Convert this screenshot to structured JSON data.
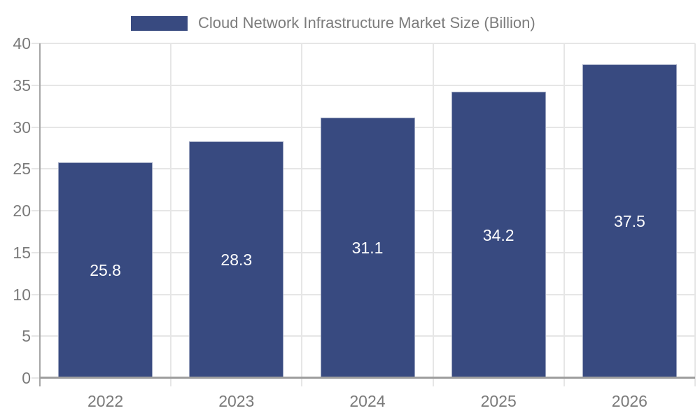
{
  "chart_data": {
    "type": "bar",
    "legend_label": "Cloud Network Infrastructure Market Size (Billion)",
    "legend_position": "top",
    "categories": [
      "2022",
      "2023",
      "2024",
      "2025",
      "2026"
    ],
    "values": [
      25.8,
      28.3,
      31.1,
      34.2,
      37.5
    ],
    "value_labels": [
      "25.8",
      "28.3",
      "31.1",
      "34.2",
      "37.5"
    ],
    "xlabel": "",
    "ylabel": "",
    "ylim": [
      0,
      40
    ],
    "yticks": [
      0,
      5,
      10,
      15,
      20,
      25,
      30,
      35,
      40
    ],
    "grid": true,
    "colors": {
      "bar": "#384a80",
      "value_text": "#ffffff",
      "axis_text": "#7a7a7a",
      "legend_text": "#7c7c7c",
      "grid_line": "#e6e6e6",
      "axis_line": "#9e9e9e"
    }
  }
}
